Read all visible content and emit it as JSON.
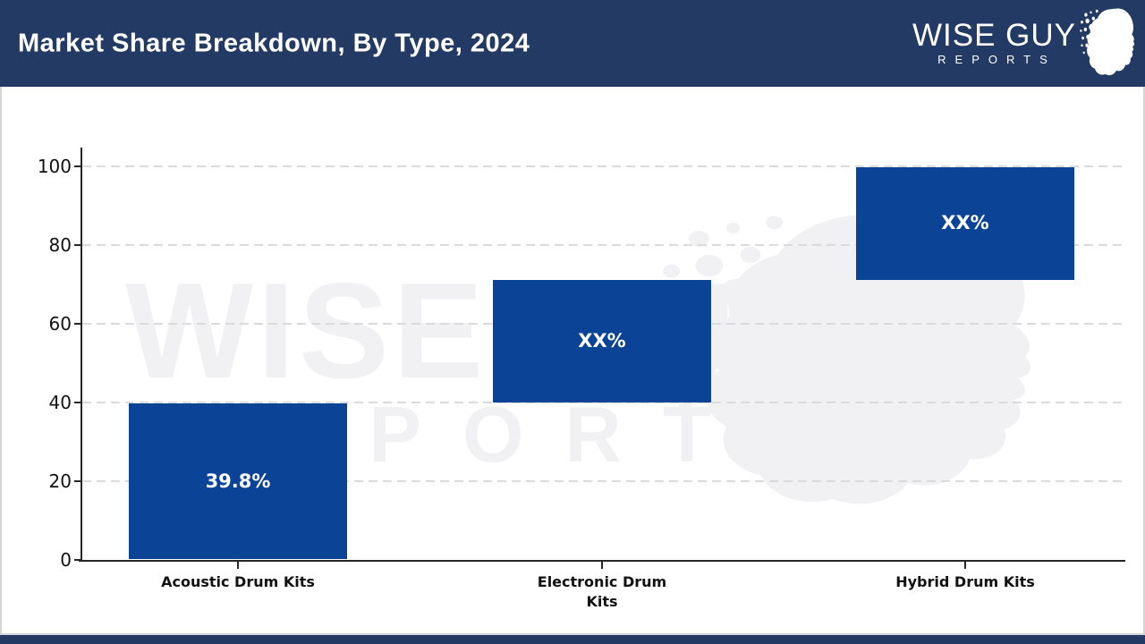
{
  "header": {
    "title": "Market Share Breakdown, By Type, 2024"
  },
  "brand": {
    "logo_line1": "WISE GUY",
    "logo_line2": "REPORTS"
  },
  "watermark": {
    "line1": "WISE GUY",
    "line2": "REPORTS"
  },
  "colors": {
    "header_bg": "#223a64",
    "footer_bar": "#223a64",
    "bar": "#0b4397",
    "bar_value_text": "#ffffff",
    "gridline": "#dbdbdb",
    "axis": "#262626",
    "watermark": "#f1f1f4",
    "title_text": "#ffffff"
  },
  "chart_data": {
    "type": "bar",
    "subtype": "waterfall-floating-bars",
    "title": "Market Share Breakdown, By Type, 2024",
    "categories": [
      "Acoustic Drum Kits",
      "Electronic Drum Kits",
      "Hybrid Drum Kits"
    ],
    "category_label_lines": [
      [
        "Acoustic Drum Kits"
      ],
      [
        "Electronic Drum",
        "Kits"
      ],
      [
        "Hybrid Drum Kits"
      ]
    ],
    "segments": [
      {
        "category": "Acoustic Drum Kits",
        "start": 0,
        "end": 39.8,
        "label": "39.8%"
      },
      {
        "category": "Electronic Drum Kits",
        "start": 40,
        "end": 71.2,
        "label": "XX%"
      },
      {
        "category": "Hybrid Drum Kits",
        "start": 71.2,
        "end": 99.8,
        "label": "XX%"
      }
    ],
    "xlabel": "",
    "ylabel": "",
    "ylim": [
      0,
      100
    ],
    "y_ticks": [
      0,
      20,
      40,
      60,
      80,
      100
    ],
    "grid": "horizontal-dashed",
    "legend": false
  }
}
